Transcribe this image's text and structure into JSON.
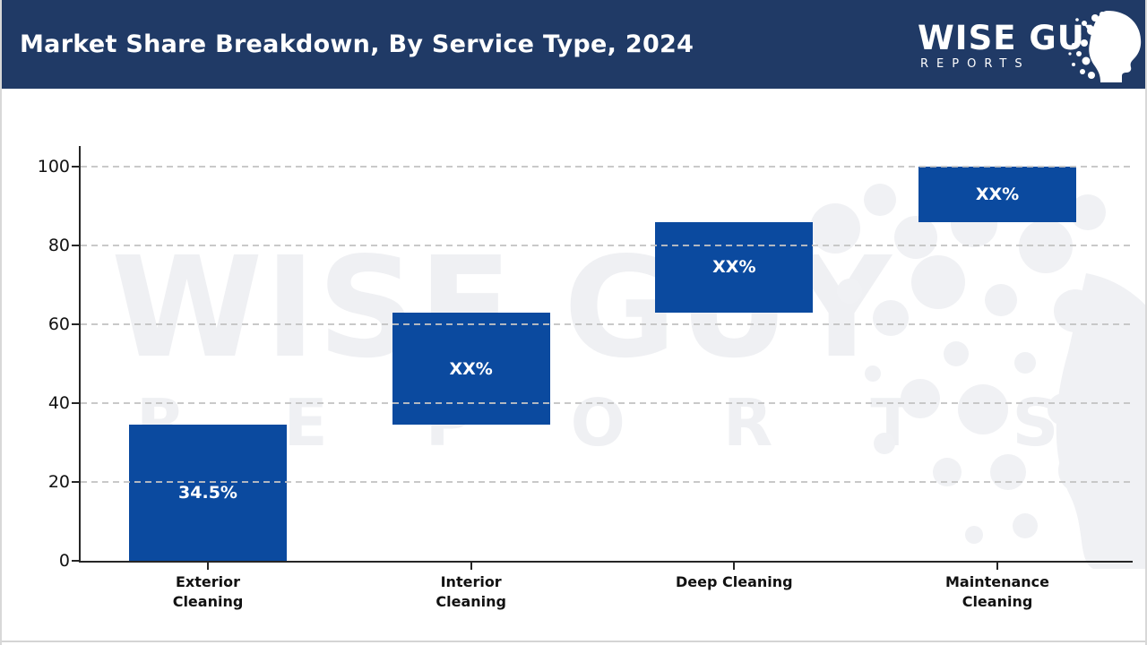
{
  "header": {
    "title": "Market Share Breakdown, By Service Type, 2024"
  },
  "logo": {
    "line1": "WISE GUY",
    "line2": "REPORTS"
  },
  "watermark": {
    "line1": "WISE GUY",
    "line2": "R E P O R T S"
  },
  "chart_data": {
    "type": "bar",
    "subtype": "waterfall",
    "title": "Market Share Breakdown, By Service Type, 2024",
    "categories": [
      "Exterior Cleaning",
      "Interior Cleaning",
      "Deep Cleaning",
      "Maintenance Cleaning"
    ],
    "segments": [
      {
        "category": "Exterior Cleaning",
        "start": 0,
        "end": 34.5,
        "label": "34.5%"
      },
      {
        "category": "Interior Cleaning",
        "start": 34.5,
        "end": 63,
        "label": "XX%"
      },
      {
        "category": "Deep Cleaning",
        "start": 63,
        "end": 86,
        "label": "XX%"
      },
      {
        "category": "Maintenance Cleaning",
        "start": 86,
        "end": 100,
        "label": "XX%"
      }
    ],
    "yticks": [
      0,
      20,
      40,
      60,
      80,
      100
    ],
    "ylim": [
      0,
      105
    ],
    "xlabel": "",
    "ylabel": "",
    "grid": "dashed-horizontal-over-bars",
    "legend": "none",
    "bar_color": "#0B4A9F",
    "bar_label_color": "#ffffff"
  },
  "colors": {
    "header_bg": "#203A66",
    "bar": "#0B4A9F",
    "grid": "#c9c9c9",
    "axis": "#262626",
    "watermark": "#eff0f3"
  }
}
